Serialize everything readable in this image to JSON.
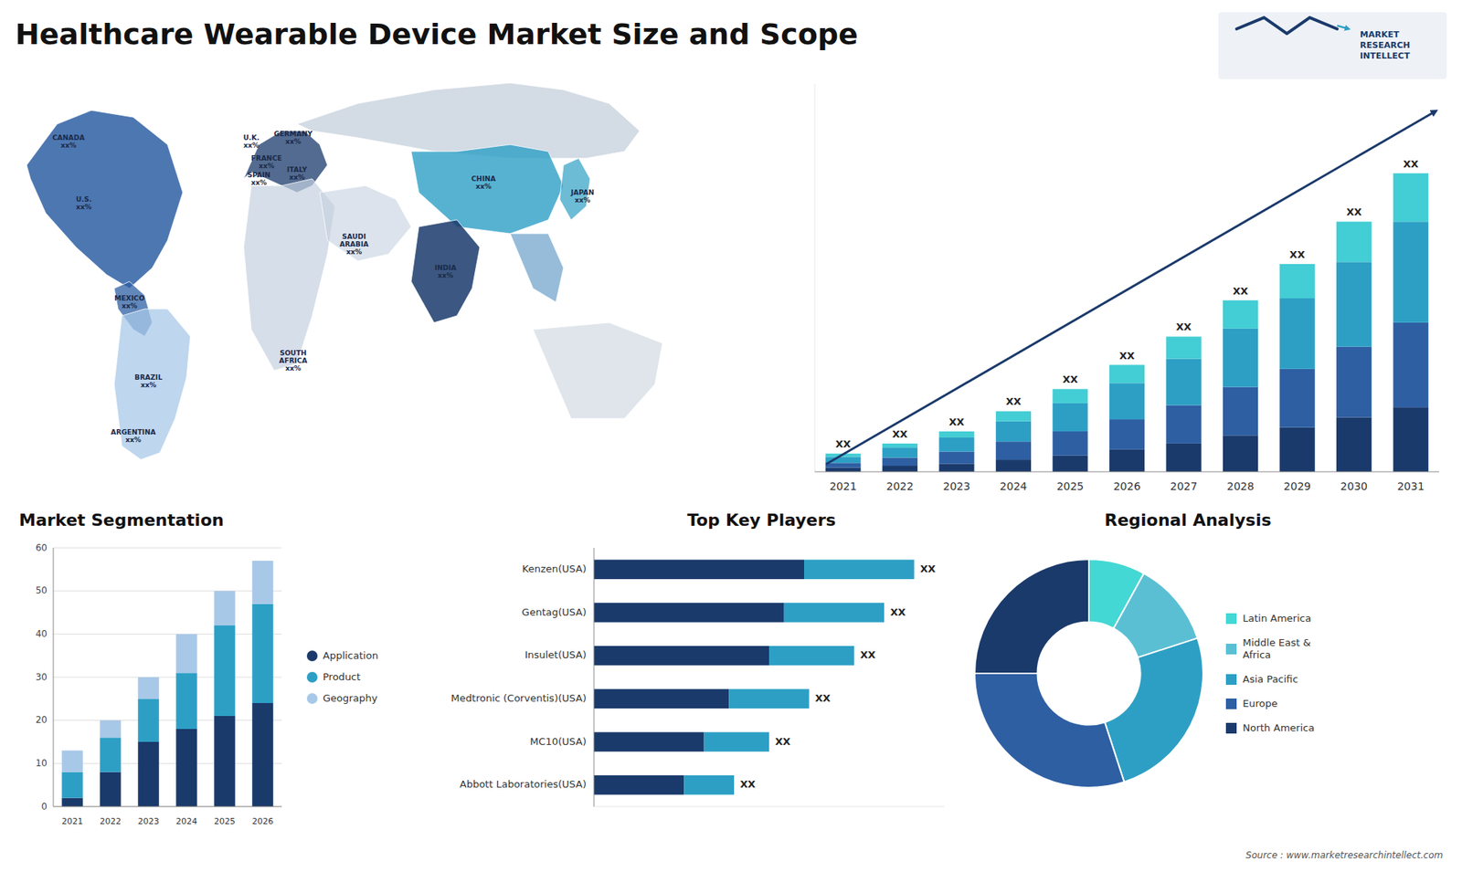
{
  "chart_data": [
    {
      "type": "map",
      "title": "Healthcare Wearable Device Market Size and Scope",
      "categories": [
        "CANADA\nxx%",
        "U.S.\nxx%",
        "MEXICO\nxx%",
        "BRAZIL\nxx%",
        "ARGENTINA\nxx%",
        "U.K.\nxx%",
        "FRANCE\nxx%",
        "SPAIN\nxx%",
        "GERMANY\nxx%",
        "ITALY\nxx%",
        "SAUDI\nARABIA\nxx%",
        "SOUTH\nAFRICA\nxx%",
        "CHINA\nxx%",
        "INDIA\nxx%",
        "JAPAN\nxx%"
      ],
      "annotations": [
        "Source : www.marketresearchintellect.com",
        "MARKET\nRESEARCH\nINTELLECT"
      ]
    },
    {
      "type": "bar",
      "stacked": true,
      "categories": [
        "2021",
        "2022",
        "2023",
        "2024",
        "2025",
        "2026",
        "2027",
        "2028",
        "2029",
        "2030",
        "2031"
      ],
      "series": [
        {
          "color": "#1a3a6b",
          "values": [
            1.0,
            1.5,
            2.0,
            3.0,
            4.0,
            5.5,
            7.0,
            9.0,
            11.0,
            13.5,
            16.0
          ]
        },
        {
          "color": "#2e5fa3",
          "values": [
            1.2,
            2.0,
            3.0,
            4.5,
            6.0,
            7.5,
            9.5,
            12.0,
            14.5,
            17.5,
            21.0
          ]
        },
        {
          "color": "#2d9fc5",
          "values": [
            1.5,
            2.5,
            3.5,
            5.0,
            7.0,
            9.0,
            11.5,
            14.5,
            17.5,
            21.0,
            25.0
          ]
        },
        {
          "color": "#43cdd4",
          "values": [
            0.8,
            1.0,
            1.5,
            2.5,
            3.5,
            4.5,
            5.5,
            7.0,
            8.5,
            10.0,
            12.0
          ]
        }
      ],
      "ylim": [
        0,
        96.2
      ],
      "tick_labels": "x",
      "annotations": [
        "XX",
        "XX",
        "XX",
        "XX",
        "XX",
        "XX",
        "XX",
        "XX",
        "XX",
        "XX",
        "XX"
      ]
    },
    {
      "type": "bar",
      "title": "Market Segmentation",
      "stacked": true,
      "categories": [
        "2021",
        "2022",
        "2023",
        "2024",
        "2025",
        "2026"
      ],
      "series": [
        {
          "name": "Application",
          "color": "#1a3a6b",
          "values": [
            2,
            8,
            15,
            18,
            21,
            24
          ]
        },
        {
          "name": "Product",
          "color": "#2d9fc5",
          "values": [
            6,
            8,
            10,
            13,
            21,
            23
          ]
        },
        {
          "name": "Geography",
          "color": "#a8c8e8",
          "values": [
            5,
            4,
            5,
            9,
            8,
            10
          ]
        }
      ],
      "ylim": [
        0,
        60
      ],
      "yticks": [
        0,
        10,
        20,
        30,
        40,
        50,
        60
      ],
      "grid": true,
      "legend": "right"
    },
    {
      "type": "bar",
      "title": "Top Key Players",
      "orientation": "horizontal",
      "stacked": true,
      "categories": [
        "Kenzen(USA)",
        "Gentag(USA)",
        "Insulet(USA)",
        "Medtronic (Corventis)(USA)",
        "MC10(USA)",
        "Abbott Laboratories(USA)"
      ],
      "series": [
        {
          "color": "#1a3a6b",
          "values": [
            42,
            38,
            35,
            27,
            22,
            18
          ]
        },
        {
          "color": "#2d9fc5",
          "values": [
            22,
            20,
            17,
            16,
            13,
            10
          ]
        }
      ],
      "xlim": [
        0,
        70
      ],
      "tick_labels": "y",
      "annotations": [
        "XX",
        "XX",
        "XX",
        "XX",
        "XX",
        "XX"
      ]
    },
    {
      "type": "pie",
      "title": "Regional Analysis",
      "categories": [
        "Latin America",
        "Middle East &\nAfrica",
        "Asia Pacific",
        "Europe",
        "North America"
      ],
      "values": [
        8,
        12,
        25,
        30,
        25
      ],
      "colors": [
        "#43d8d4",
        "#5bbfd4",
        "#2d9fc5",
        "#2e5fa3",
        "#1a3a6b"
      ],
      "legend": "right"
    }
  ]
}
